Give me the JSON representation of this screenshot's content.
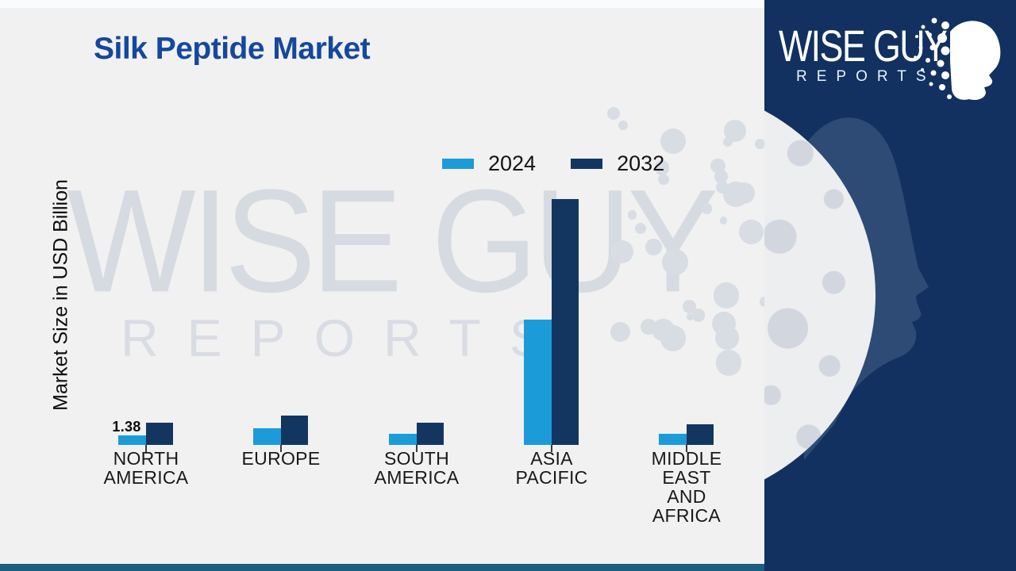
{
  "header": {
    "title": "Silk Peptide Market"
  },
  "colors": {
    "title_blue": "#15489d",
    "series_2024": "#1b9cd8",
    "series_2032": "#12365f",
    "panel_navy": "#123160",
    "bottom_strip_teal": "#1b5e80",
    "watermark_gray": "#d8dce3"
  },
  "chart_data": {
    "type": "bar",
    "title": "Silk Peptide Market",
    "ylabel": "Market Size in USD Billion",
    "xlabel": "",
    "grid": false,
    "legend_position": "top",
    "categories": [
      "NORTH AMERICA",
      "EUROPE",
      "SOUTH AMERICA",
      "ASIA PACIFIC",
      "MIDDLE EAST AND AFRICA"
    ],
    "category_lines": [
      [
        "NORTH",
        "AMERICA"
      ],
      [
        "EUROPE"
      ],
      [
        "SOUTH",
        "AMERICA"
      ],
      [
        "ASIA",
        "PACIFIC"
      ],
      [
        "MIDDLE",
        "EAST",
        "AND",
        "AFRICA"
      ]
    ],
    "series": [
      {
        "name": "2024",
        "color": "#1b9cd8",
        "values": [
          1.38,
          2.3,
          1.5,
          17.5,
          1.5
        ]
      },
      {
        "name": "2032",
        "color": "#12365f",
        "values": [
          3.1,
          4.1,
          3.1,
          34.4,
          2.9
        ]
      }
    ],
    "value_label": "1.38",
    "value_label_target": {
      "category": "NORTH AMERICA",
      "series": "2024"
    },
    "ylim": [
      0,
      40
    ]
  },
  "legend": {
    "items": [
      {
        "label": "2024",
        "color": "#1b9cd8"
      },
      {
        "label": "2032",
        "color": "#12365f"
      }
    ]
  },
  "watermark": {
    "brand": "WISE GUY",
    "reports": "REPORTS"
  },
  "logo": {
    "brand": "WISE GUY",
    "reports": "REPORTS"
  }
}
